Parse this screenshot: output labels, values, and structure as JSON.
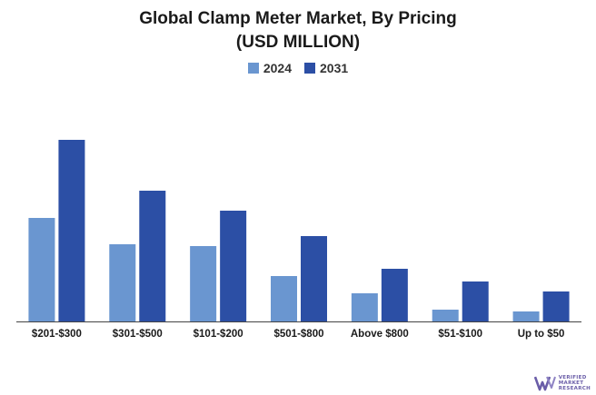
{
  "chart_data": {
    "type": "bar",
    "title": "Global Clamp Meter Market, By Pricing",
    "subtitle": "(USD MILLION)",
    "categories": [
      "$201-$300",
      "$301-$500",
      "$101-$200",
      "$501-$800",
      "Above $800",
      "$51-$100",
      "Up to $50"
    ],
    "series": [
      {
        "name": "2024",
        "color": "#6a96d0",
        "values": [
          57,
          42.5,
          41.5,
          25,
          15.5,
          6.5,
          5.5
        ]
      },
      {
        "name": "2031",
        "color": "#2c4fa5",
        "values": [
          100,
          72,
          61,
          47,
          29,
          22,
          16.5
        ]
      }
    ],
    "ylim": [
      0,
      100
    ],
    "grid": false,
    "legend_position": "top-center",
    "xlabel": "",
    "ylabel": ""
  },
  "logo": {
    "lines": [
      "VERIFIED",
      "MARKET",
      "RESEARCH"
    ],
    "icon": "vmr-logo-icon",
    "color": "#6a5da8"
  }
}
